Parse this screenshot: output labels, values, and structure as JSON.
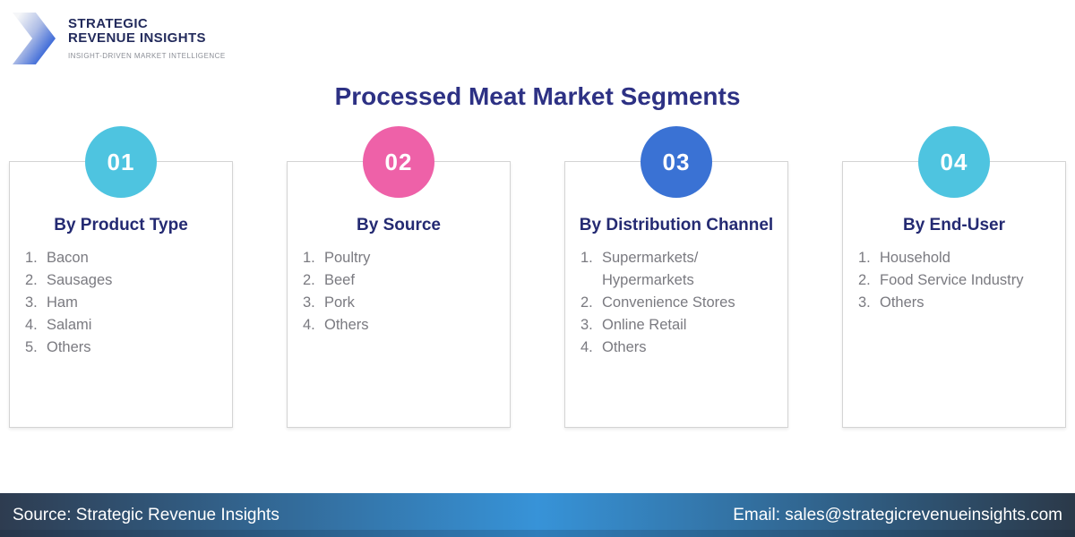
{
  "logo": {
    "line1": "STRATEGIC",
    "line2": "REVENUE INSIGHTS",
    "tagline": "INSIGHT-DRIVEN MARKET INTELLIGENCE"
  },
  "title": "Processed Meat Market Segments",
  "cards": [
    {
      "number": "01",
      "badge_color": "#4ec4e0",
      "title": "By Product Type",
      "items": [
        {
          "num": "1.",
          "label": "Bacon"
        },
        {
          "num": "2.",
          "label": "Sausages"
        },
        {
          "num": "3.",
          "label": "Ham"
        },
        {
          "num": "4.",
          "label": "Salami"
        },
        {
          "num": "5.",
          "label": "Others"
        }
      ]
    },
    {
      "number": "02",
      "badge_color": "#ee61a8",
      "title": "By Source",
      "items": [
        {
          "num": "1.",
          "label": "Poultry"
        },
        {
          "num": "2.",
          "label": "Beef"
        },
        {
          "num": "3.",
          "label": "Pork"
        },
        {
          "num": "4.",
          "label": "Others"
        }
      ]
    },
    {
      "number": "03",
      "badge_color": "#3a72d4",
      "title": "By Distribution Channel",
      "items": [
        {
          "num": "1.",
          "label": "Supermarkets/ Hypermarkets"
        },
        {
          "num": "2.",
          "label": "Convenience Stores"
        },
        {
          "num": "3.",
          "label": "Online Retail"
        },
        {
          "num": "4.",
          "label": "Others"
        }
      ]
    },
    {
      "number": "04",
      "badge_color": "#4ec4e0",
      "title": "By End-User",
      "items": [
        {
          "num": "1.",
          "label": "Household"
        },
        {
          "num": "2.",
          "label": "Food Service Industry"
        },
        {
          "num": "3.",
          "label": "Others"
        }
      ]
    }
  ],
  "footer": {
    "source": "Source: Strategic Revenue Insights",
    "email": "Email: sales@strategicrevenueinsights.com"
  },
  "colors": {
    "title_text": "#2d3184",
    "card_title_text": "#242a72",
    "list_text": "#7a7a80",
    "card_border": "#d4d4d4",
    "footer_gradient_left": "#2e3c50",
    "footer_gradient_mid": "#3793d8",
    "footer_gradient_right": "#2b3949",
    "badge_cyan": "#4ec4e0",
    "badge_pink": "#ee61a8",
    "badge_blue": "#3a72d4"
  }
}
